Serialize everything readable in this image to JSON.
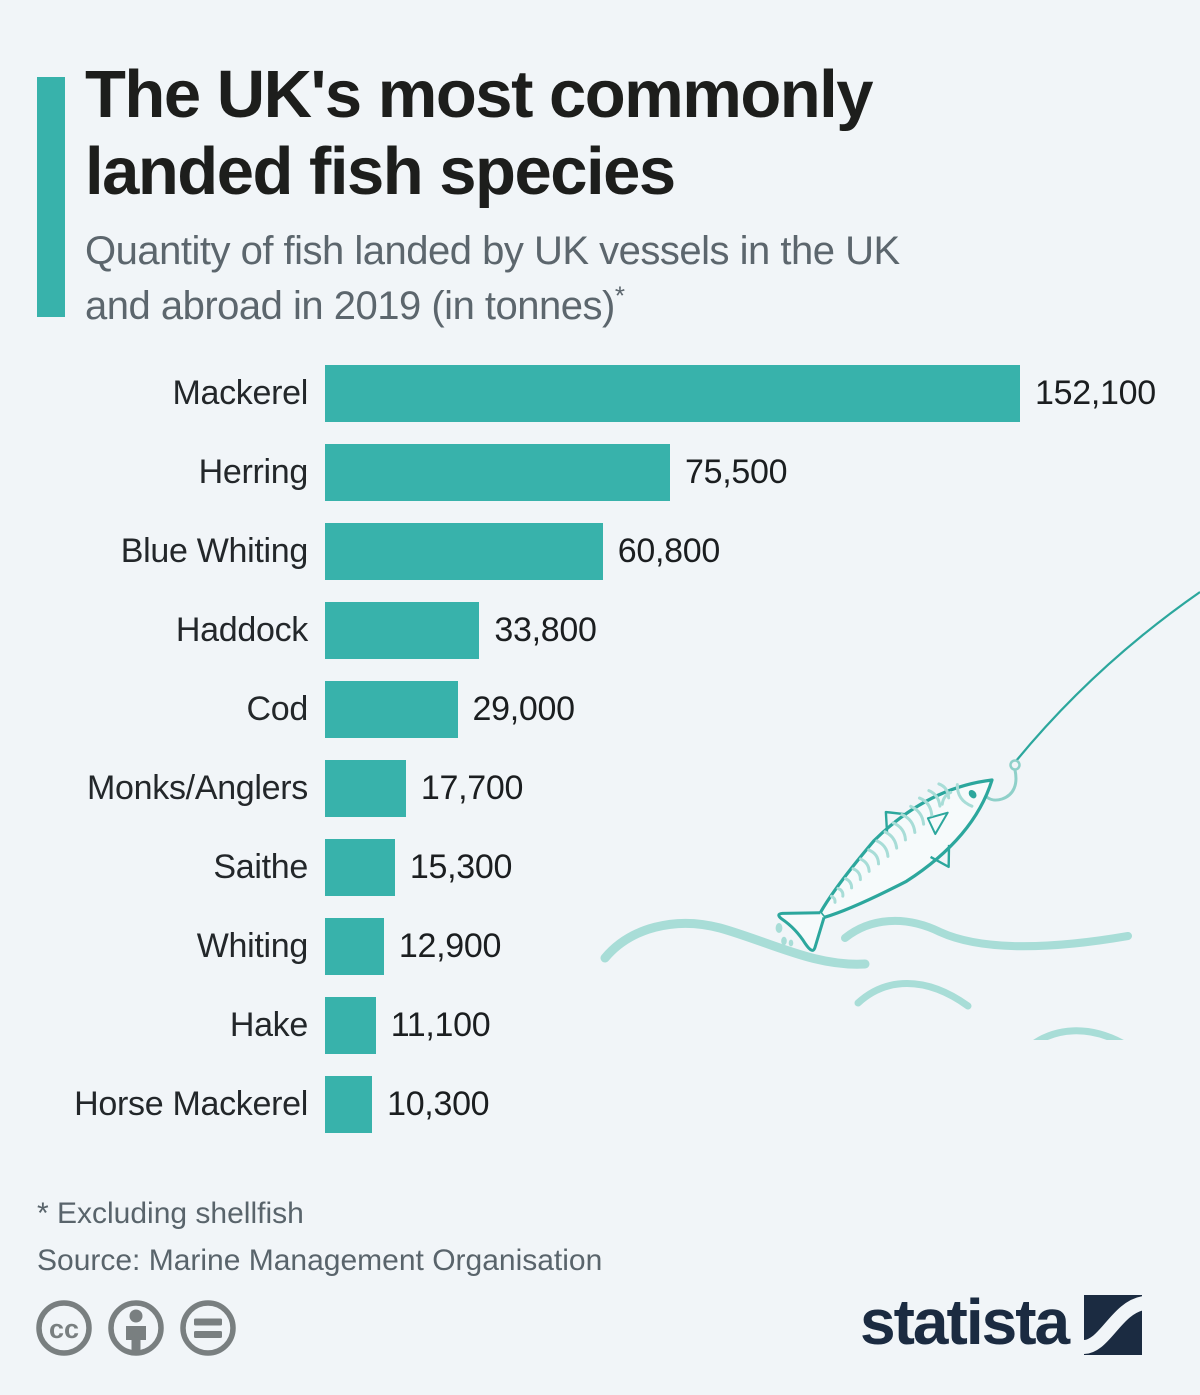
{
  "header": {
    "title_line1": "The UK's most commonly",
    "title_line2": "landed fish species",
    "subtitle_line1": "Quantity of fish landed by UK vessels in the UK",
    "subtitle_line2": "and abroad in 2019 (in tonnes)",
    "footnote_marker": "*"
  },
  "chart_data": {
    "type": "bar",
    "orientation": "horizontal",
    "title": "The UK's most commonly landed fish species",
    "subtitle": "Quantity of fish landed by UK vessels in the UK and abroad in 2019 (in tonnes)*",
    "unit": "tonnes",
    "year": "2019",
    "categories": [
      "Mackerel",
      "Herring",
      "Blue Whiting",
      "Haddock",
      "Cod",
      "Monks/Anglers",
      "Saithe",
      "Whiting",
      "Hake",
      "Horse Mackerel"
    ],
    "values": [
      152100,
      75500,
      60800,
      33800,
      29000,
      17700,
      15300,
      12900,
      11100,
      10300
    ],
    "value_labels": [
      "152,100",
      "75,500",
      "60,800",
      "33,800",
      "29,000",
      "17,700",
      "15,300",
      "12,900",
      "11,100",
      "10,300"
    ],
    "xlabel": "",
    "ylabel": "",
    "xlim": [
      0,
      152100
    ],
    "grid": "off",
    "legend": "none",
    "bar_color": "#38b2ab"
  },
  "footer": {
    "footnote": "* Excluding shellfish",
    "source": "Source: Marine Management Organisation"
  },
  "branding": {
    "logo_text": "statista",
    "license_icons": [
      "cc-icon",
      "attribution-icon",
      "no-derivatives-icon"
    ]
  },
  "colors": {
    "background": "#f1f5f8",
    "accent_teal": "#38b2ab",
    "title_text": "#1d1e1c",
    "subtitle_text": "#5c666d",
    "footer_text": "#59646b",
    "illustration_teal": "#2ca79d",
    "illustration_light_teal": "#a8ddd7",
    "logo_navy": "#1b2b41",
    "license_gray": "#797f80"
  }
}
